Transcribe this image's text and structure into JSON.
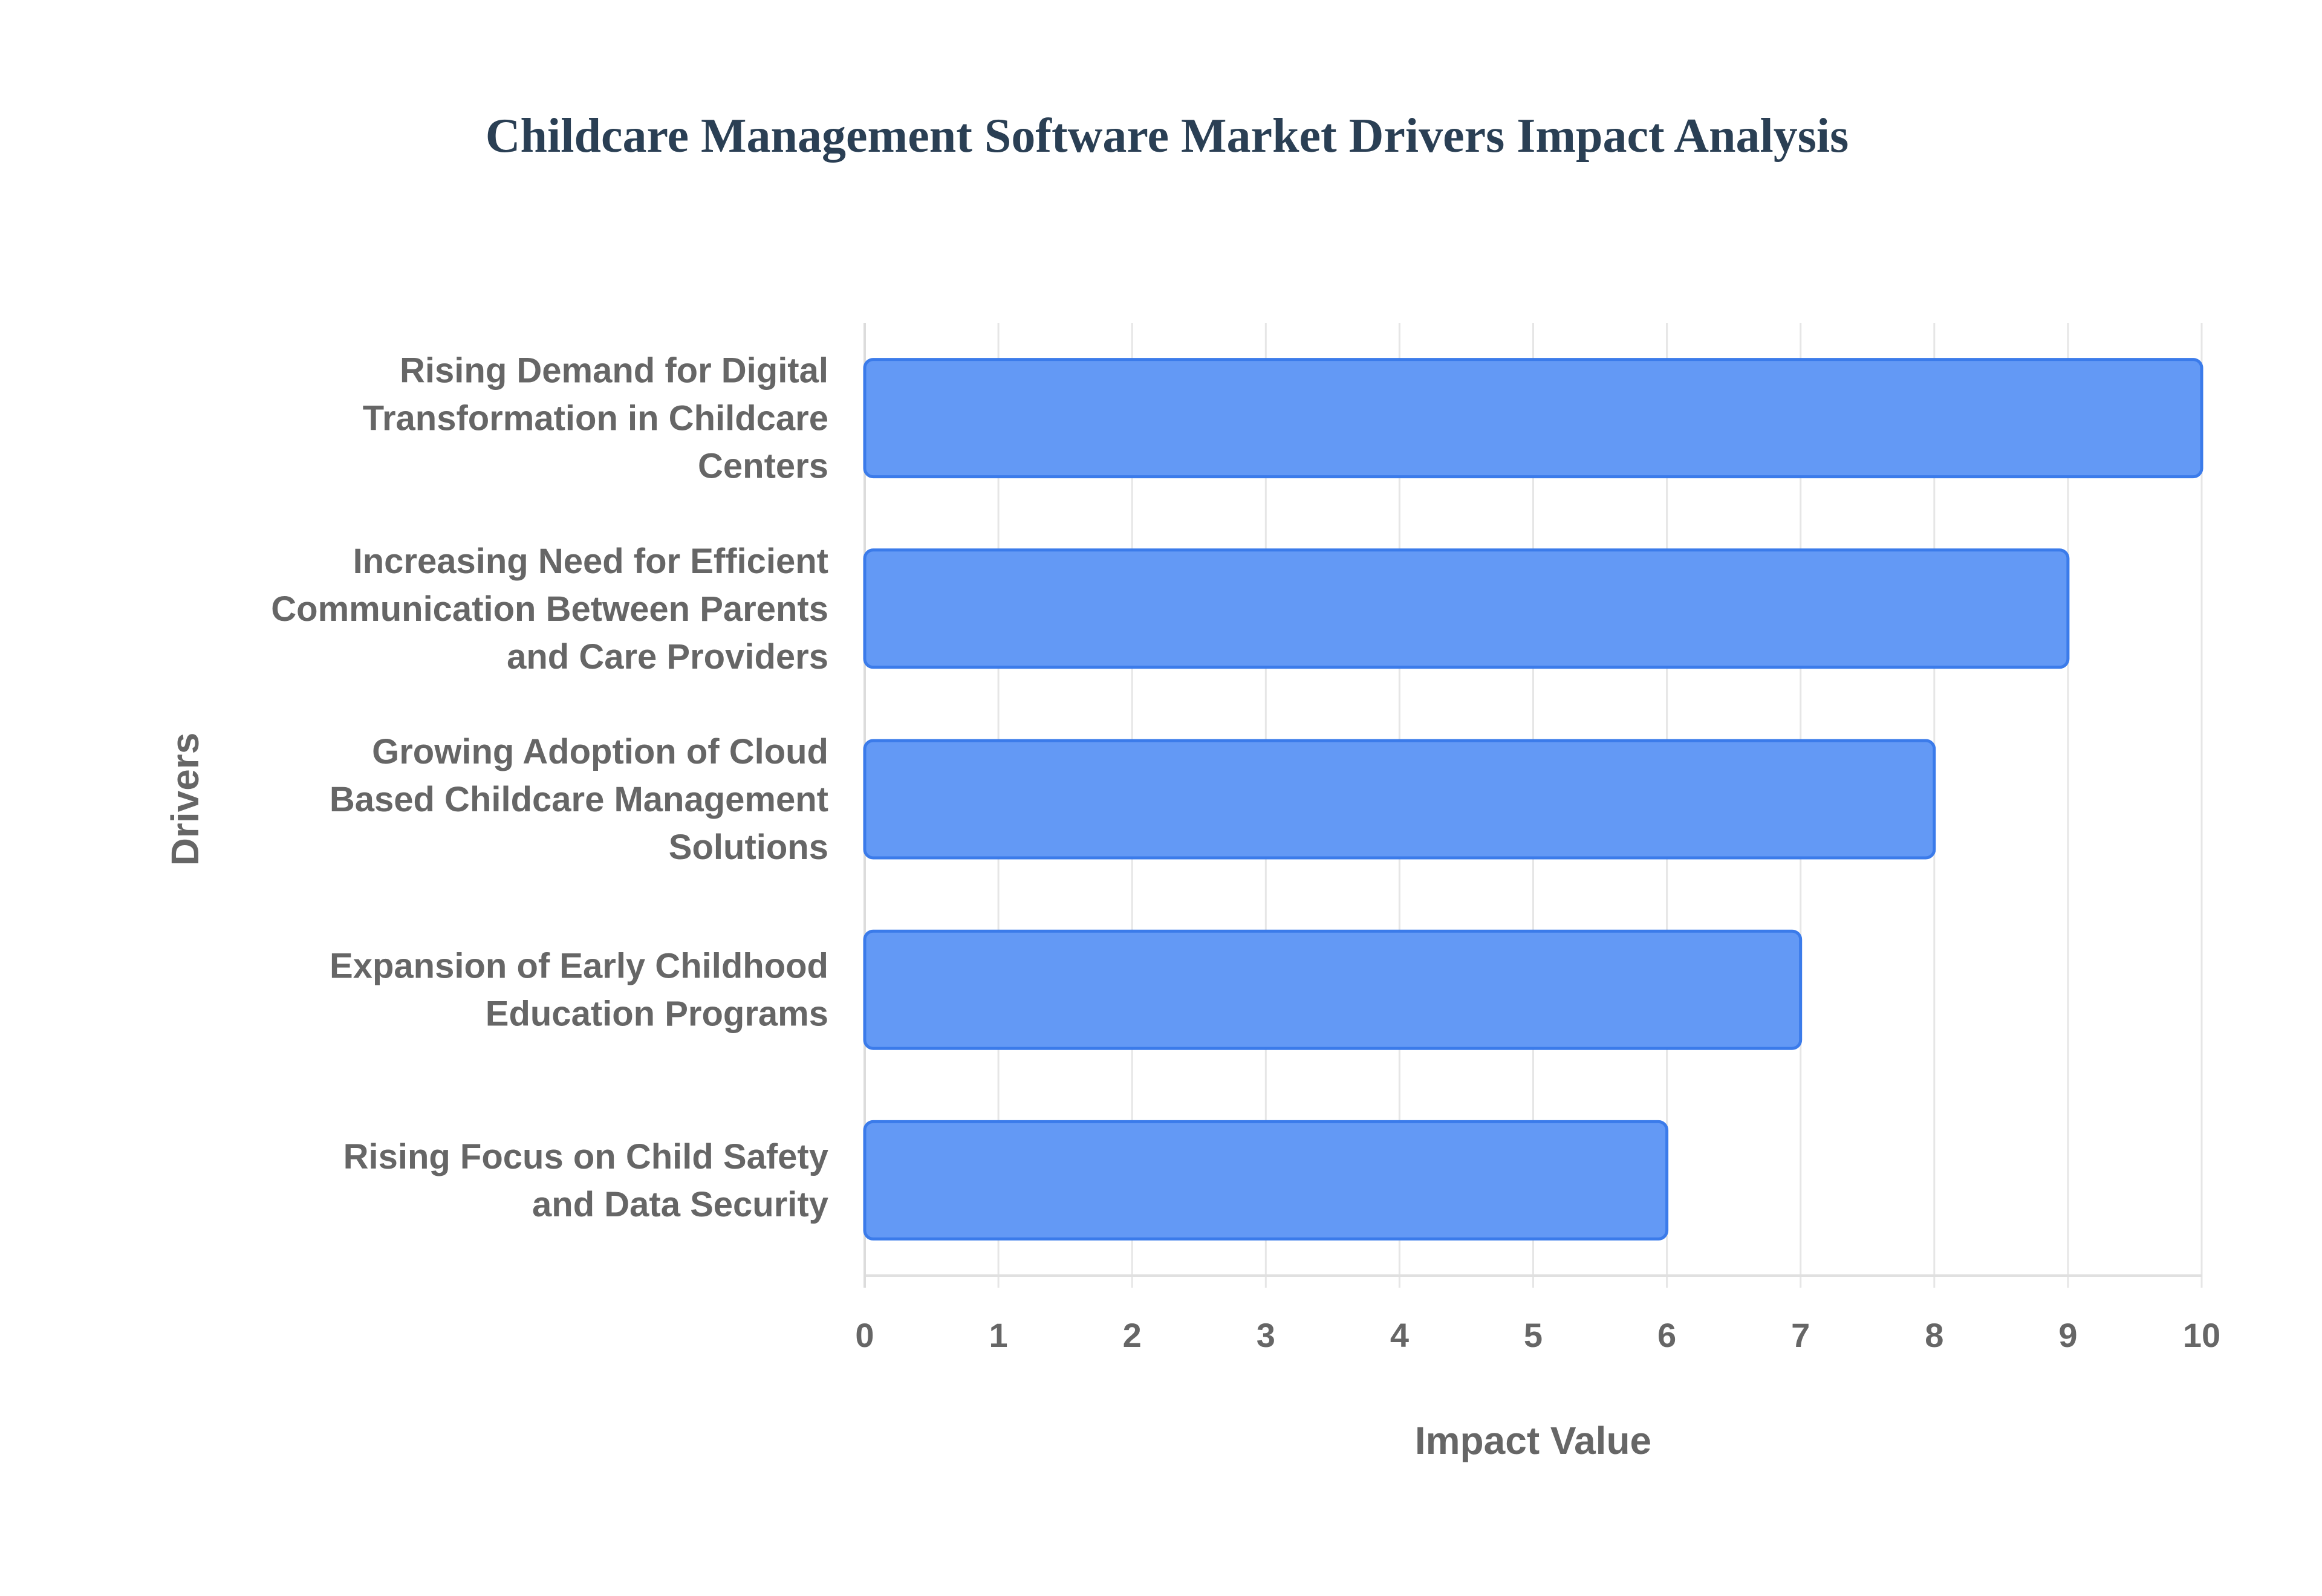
{
  "chart_data": {
    "type": "bar",
    "orientation": "horizontal",
    "title": "Childcare Management Software Market Drivers Impact Analysis",
    "xlabel": "Impact Value",
    "ylabel": "Drivers",
    "xlim": [
      0,
      10
    ],
    "xticks": [
      "0",
      "1",
      "2",
      "3",
      "4",
      "5",
      "6",
      "7",
      "8",
      "9",
      "10"
    ],
    "grid": true,
    "categories": [
      [
        "Rising Demand for Digital",
        "Transformation in Childcare",
        "Centers"
      ],
      [
        "Increasing Need for Efficient",
        "Communication Between Parents",
        "and Care Providers"
      ],
      [
        "Growing Adoption of Cloud",
        "Based Childcare Management",
        "Solutions"
      ],
      [
        "Expansion of Early Childhood",
        "Education Programs"
      ],
      [
        "Rising Focus on Child Safety",
        "and Data Security"
      ]
    ],
    "values": [
      10,
      9,
      8,
      7,
      6
    ],
    "colors": {
      "bar_fill": "#6399f5",
      "bar_border": "#3b7bea",
      "title": "#2a3f54",
      "text": "#666666",
      "grid": "#e6e6e6"
    }
  }
}
